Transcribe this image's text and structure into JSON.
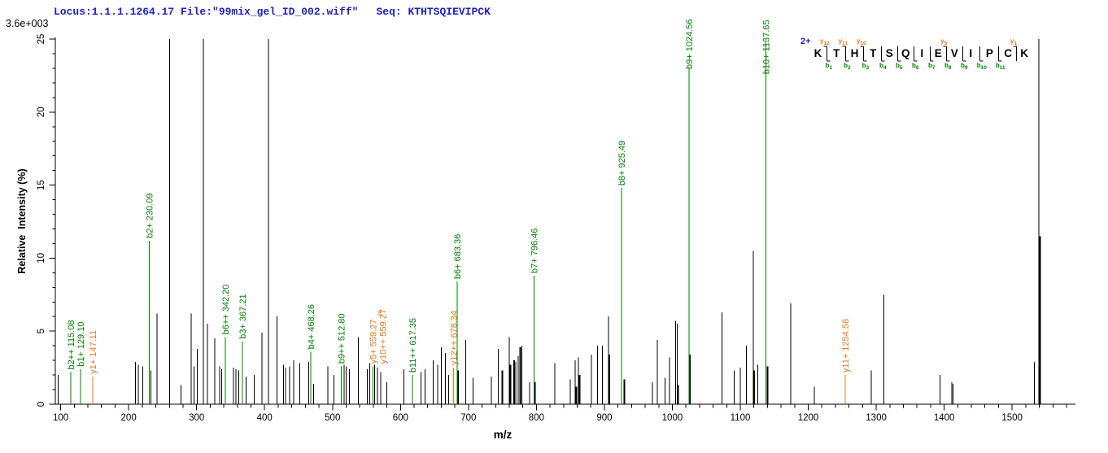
{
  "header": {
    "locus_file": "Locus:1.1.1.1264.17 File:\"99mix_gel_ID_002.wiff\"",
    "seq_label": "Seq: KTHTSQIEVIPCK",
    "intensity_scale": "3.6e+003"
  },
  "peptide_diagram": {
    "charge": "2+",
    "residues": [
      "K",
      "T",
      "H",
      "T",
      "S",
      "Q",
      "I",
      "E",
      "V",
      "I",
      "P",
      "C",
      "K"
    ],
    "dividers": [
      {
        "y": "y12",
        "b": "b1"
      },
      {
        "y": "y11",
        "b": "b2"
      },
      {
        "y": "y10",
        "b": "b3"
      },
      {
        "b": "b4"
      },
      {
        "b": "b5"
      },
      {
        "b": "b6"
      },
      {
        "b": "b7"
      },
      {
        "y": "y5",
        "b": "b8"
      },
      {
        "b": "b9"
      },
      {
        "b": "b10"
      },
      {
        "b": "b11"
      },
      {
        "y": "y1"
      }
    ]
  },
  "chart_data": {
    "type": "bar",
    "subtype": "ms2-fragment-spectrum",
    "title": "",
    "xlabel": "m/z",
    "ylabel": "Relative  Intensity (%)",
    "xlim": [
      92,
      1590
    ],
    "ylim": [
      0,
      25
    ],
    "x_ticks_major": [
      100,
      200,
      300,
      400,
      500,
      600,
      700,
      800,
      900,
      1000,
      1100,
      1200,
      1300,
      1400,
      1500
    ],
    "x_minor_step": 20,
    "x_minor_end": 1580,
    "y_ticks_major": [
      0,
      5,
      10,
      15,
      20,
      25
    ],
    "y_minor_step": 1,
    "grid": false,
    "colors": {
      "b": "#008000",
      "y": "#e87722",
      "peak": "#000000",
      "header_blue": "#2121c0"
    },
    "labeled_peaks": [
      {
        "mz": 115.08,
        "h": 2.2,
        "color": "b",
        "labels": [
          {
            "text": "b2++ 115.08"
          }
        ]
      },
      {
        "mz": 129.1,
        "h": 2.4,
        "color": "b",
        "labels": [
          {
            "text": "b1+ 129.10"
          }
        ]
      },
      {
        "mz": 147.11,
        "h": 1.9,
        "color": "y",
        "labels": [
          {
            "text": "y1+ 147.11"
          }
        ]
      },
      {
        "mz": 230.09,
        "h": 11.2,
        "color": "b",
        "labels": [
          {
            "text": "b2+ 230.09"
          }
        ]
      },
      {
        "mz": 342.2,
        "h": 4.6,
        "color": "b",
        "labels": [
          {
            "text": "b6++ 342.20"
          }
        ]
      },
      {
        "mz": 367.21,
        "h": 4.3,
        "color": "b",
        "labels": [
          {
            "text": "b3+ 367.21"
          }
        ]
      },
      {
        "mz": 468.26,
        "h": 3.6,
        "color": "b",
        "labels": [
          {
            "text": "b4+ 468.26"
          }
        ]
      },
      {
        "mz": 512.8,
        "h": 2.6,
        "color": "b",
        "labels": [
          {
            "text": "b9++ 512.80"
          }
        ]
      },
      {
        "mz": 559.27,
        "h": 2.6,
        "color": "b",
        "labels": [
          {
            "text": "y5+ 559.27",
            "color": "y"
          },
          {
            "text": "25",
            "color": "y",
            "small": true,
            "dx": 7,
            "rise": 58
          },
          {
            "text": "y10++ 559.27",
            "color": "y",
            "dx": 12
          }
        ]
      },
      {
        "mz": 617.35,
        "h": 2.0,
        "color": "b",
        "labels": [
          {
            "text": "b11++ 617.35"
          }
        ]
      },
      {
        "mz": 678.34,
        "h": 2.5,
        "color": "y",
        "labels": [
          {
            "text": "y12++ 678.34"
          }
        ]
      },
      {
        "mz": 683.36,
        "h": 8.4,
        "color": "b",
        "labels": [
          {
            "text": "b6+ 683.36"
          }
        ]
      },
      {
        "mz": 796.46,
        "h": 8.8,
        "color": "b",
        "labels": [
          {
            "text": "b7+ 796.46"
          }
        ]
      },
      {
        "mz": 925.49,
        "h": 14.8,
        "color": "b",
        "labels": [
          {
            "text": "b8+ 925.49"
          }
        ]
      },
      {
        "mz": 1024.56,
        "h": 23.0,
        "color": "b",
        "labels": [
          {
            "text": "b9+ 1024.56"
          }
        ]
      },
      {
        "mz": 1137.65,
        "h": 25,
        "color": "b",
        "labels": [
          {
            "text": "b10+ 1137.65"
          }
        ]
      },
      {
        "mz": 1254.58,
        "h": 2.0,
        "color": "y",
        "labels": [
          {
            "text": "y11+ 1254.58"
          }
        ]
      }
    ],
    "unlabeled_peaks": [
      [
        96.5,
        2.0
      ],
      [
        210,
        2.9
      ],
      [
        214,
        2.7
      ],
      [
        221,
        2.6
      ],
      [
        232.5,
        2.3
      ],
      [
        242,
        6.2
      ],
      [
        260,
        25
      ],
      [
        277,
        1.3
      ],
      [
        292,
        6.2
      ],
      [
        296,
        2.6
      ],
      [
        301,
        3.8
      ],
      [
        310,
        25
      ],
      [
        316,
        5.5
      ],
      [
        327,
        4.5
      ],
      [
        334,
        2.6
      ],
      [
        337,
        2.4
      ],
      [
        354,
        2.5
      ],
      [
        358,
        2.4
      ],
      [
        362,
        2.3
      ],
      [
        373,
        1.9
      ],
      [
        385,
        2.0
      ],
      [
        396,
        4.9
      ],
      [
        406,
        25
      ],
      [
        418,
        6.0
      ],
      [
        428,
        2.7
      ],
      [
        431,
        2.5
      ],
      [
        437,
        2.6
      ],
      [
        443,
        3.0
      ],
      [
        452,
        2.8
      ],
      [
        465,
        2.9
      ],
      [
        472,
        1.4
      ],
      [
        493,
        2.6
      ],
      [
        502,
        2.0
      ],
      [
        517,
        2.7
      ],
      [
        520,
        2.6
      ],
      [
        525,
        2.4
      ],
      [
        538,
        4.6
      ],
      [
        551,
        2.4
      ],
      [
        555,
        2.8
      ],
      [
        562,
        2.7
      ],
      [
        566,
        2.5
      ],
      [
        571,
        2.2
      ],
      [
        580,
        1.5
      ],
      [
        605,
        2.4
      ],
      [
        630,
        2.2
      ],
      [
        636,
        2.4
      ],
      [
        648,
        3.0
      ],
      [
        655,
        2.7
      ],
      [
        660,
        3.9
      ],
      [
        666,
        3.5
      ],
      [
        671,
        2.0
      ],
      [
        684.5,
        2.3,
        2
      ],
      [
        696,
        4.4
      ],
      [
        707,
        1.8
      ],
      [
        734,
        1.9
      ],
      [
        744,
        3.8
      ],
      [
        750,
        2.3,
        2
      ],
      [
        760,
        4.6
      ],
      [
        762,
        2.7,
        2
      ],
      [
        767,
        3.0,
        2
      ],
      [
        769.5,
        2.9
      ],
      [
        773,
        3.3
      ],
      [
        776,
        3.9,
        2
      ],
      [
        778.5,
        4.0
      ],
      [
        790,
        1.5
      ],
      [
        798,
        1.5,
        2
      ],
      [
        827,
        2.8
      ],
      [
        850,
        1.7
      ],
      [
        857,
        3.0
      ],
      [
        858.5,
        1.2,
        2
      ],
      [
        862,
        3.2
      ],
      [
        863.5,
        2.0,
        2
      ],
      [
        881,
        3.4
      ],
      [
        890,
        4.0
      ],
      [
        897,
        4.0
      ],
      [
        906,
        6.0
      ],
      [
        907.5,
        3.4,
        2
      ],
      [
        929.5,
        1.7,
        2
      ],
      [
        971,
        1.5
      ],
      [
        978,
        4.4
      ],
      [
        989,
        1.8
      ],
      [
        996,
        3.2
      ],
      [
        1005,
        5.7
      ],
      [
        1007,
        5.5
      ],
      [
        1008.5,
        1.3,
        2
      ],
      [
        1026,
        3.4,
        2
      ],
      [
        1073,
        6.3
      ],
      [
        1091,
        2.3
      ],
      [
        1100,
        2.5
      ],
      [
        1109,
        4.0
      ],
      [
        1119,
        10.5
      ],
      [
        1120.5,
        2.3,
        2
      ],
      [
        1126,
        2.7
      ],
      [
        1140,
        2.6,
        2
      ],
      [
        1174,
        6.9
      ],
      [
        1209,
        1.2
      ],
      [
        1293,
        2.3
      ],
      [
        1311,
        7.5
      ],
      [
        1394,
        2.0
      ],
      [
        1411,
        1.5
      ],
      [
        1413,
        1.4
      ],
      [
        1533,
        2.9
      ],
      [
        1539.5,
        25
      ],
      [
        1541,
        11.5,
        2
      ]
    ]
  }
}
